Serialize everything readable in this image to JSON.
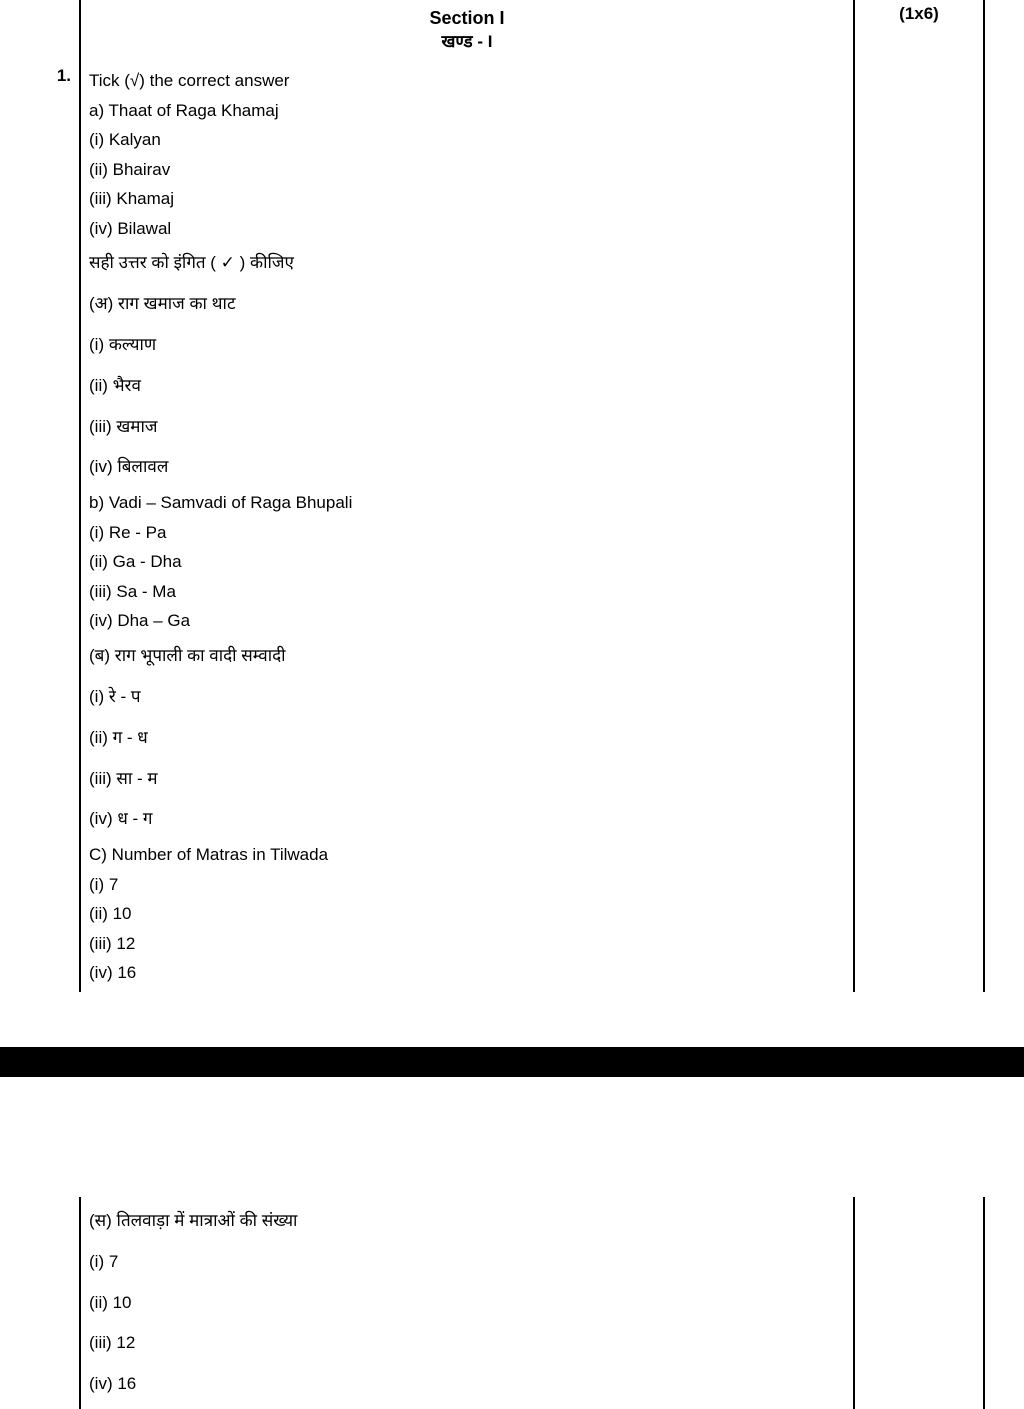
{
  "section": {
    "title": "Section I",
    "subtitle": "खण्ड - I",
    "marks": "(1x6)"
  },
  "question1": {
    "number": "1.",
    "instruction_en": "Tick (√) the correct answer",
    "instruction_hi": "सही उत्तर को इंगित ( ✓ ) कीजिए",
    "a": {
      "prompt_en": "a) Thaat of Raga Khamaj",
      "opts_en": {
        "i": "(i) Kalyan",
        "ii": "(ii) Bhairav",
        "iii": "(iii) Khamaj",
        "iv": "(iv) Bilawal"
      },
      "prompt_hi": "(अ) राग खमाज का थाट",
      "opts_hi": {
        "i": "(i)  कल्याण",
        "ii": "(ii)  भैरव",
        "iii": "(iii)  खमाज",
        "iv": "(iv)  बिलावल"
      }
    },
    "b": {
      "prompt_en": "b) Vadi – Samvadi of Raga Bhupali",
      "opts_en": {
        "i": "(i) Re - Pa",
        "ii": "(ii) Ga - Dha",
        "iii": "(iii) Sa - Ma",
        "iv": "(iv) Dha – Ga"
      },
      "prompt_hi": "(ब) राग भूपाली का वादी सम्वादी",
      "opts_hi": {
        "i": "(i)  रे - प",
        "ii": "(ii) ग - ध",
        "iii": "(iii) सा - म",
        "iv": "(iv) ध - ग"
      }
    },
    "c": {
      "prompt_en": "C) Number of Matras in Tilwada",
      "opts_en": {
        "i": "(i) 7",
        "ii": "(ii) 10",
        "iii": "(iii) 12",
        "iv": "(iv) 16"
      },
      "prompt_hi": "(स) तिलवाड़ा में मात्राओं की संख्या",
      "opts_hi": {
        "i": "(i)  7",
        "ii": "(ii)  10",
        "iii": "(iii)  12",
        "iv": "(iv)  16"
      }
    }
  }
}
